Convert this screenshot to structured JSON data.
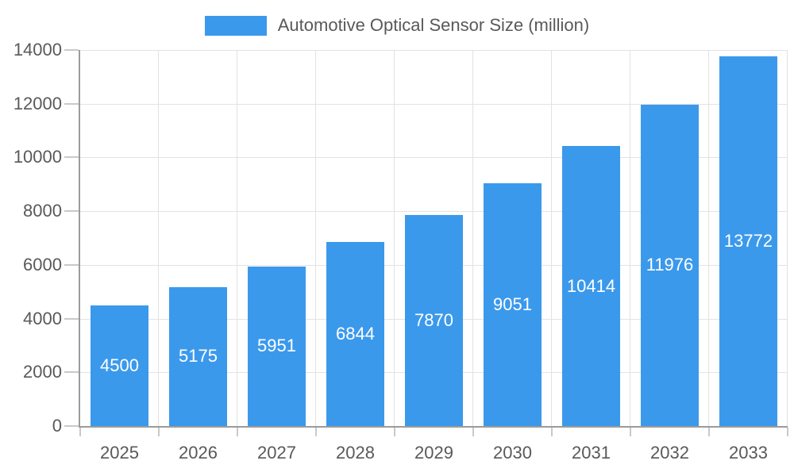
{
  "chart_data": {
    "type": "bar",
    "legend_label": "Automotive Optical Sensor Size (million)",
    "legend_position": "top-center",
    "categories": [
      "2025",
      "2026",
      "2027",
      "2028",
      "2029",
      "2030",
      "2031",
      "2032",
      "2033"
    ],
    "values": [
      4500,
      5175,
      5951,
      6844,
      7870,
      9051,
      10414,
      11976,
      13772
    ],
    "xlabel": "",
    "ylabel": "",
    "ylim": [
      0,
      14000
    ],
    "yticks": [
      0,
      2000,
      4000,
      6000,
      8000,
      10000,
      12000,
      14000
    ],
    "grid": true,
    "value_labels": "centered-inside-bars",
    "colors": {
      "bar": "#3B99EC",
      "value_label": "#FFFFFF",
      "axis_text": "#59595B",
      "gridline": "#E2E2E2",
      "axis_line": "#9B9B9B",
      "tick": "#C9C9C9",
      "background": "#FFFFFF"
    }
  }
}
